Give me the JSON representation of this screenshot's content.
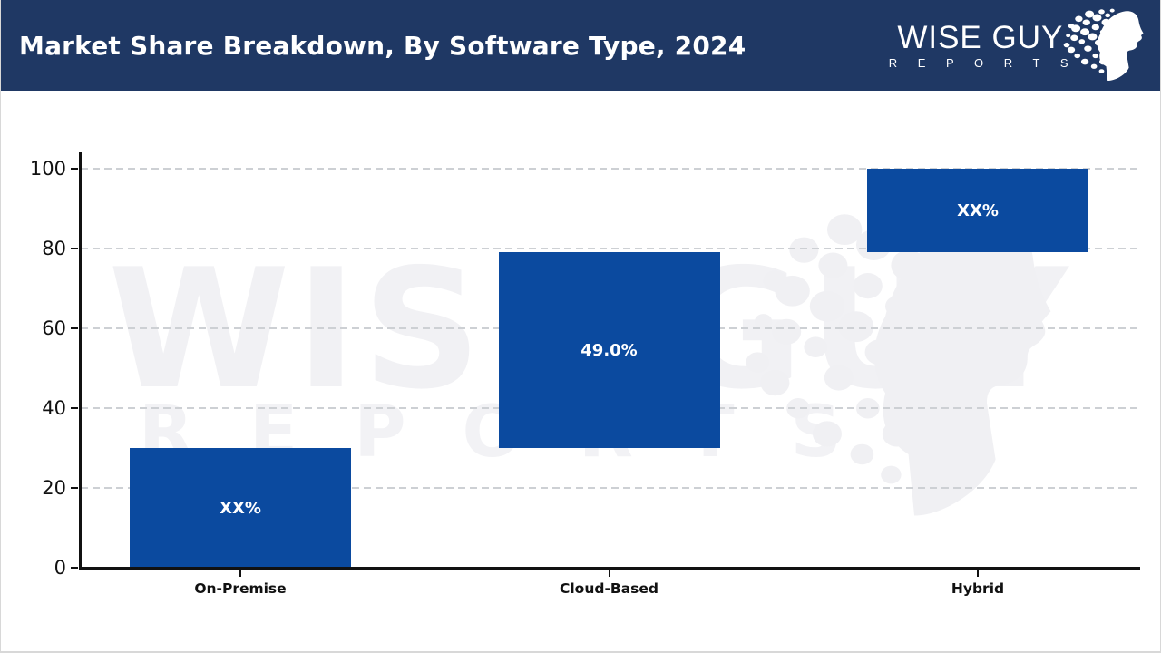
{
  "header": {
    "title": "Market Share Breakdown, By Software Type, 2024",
    "background_color": "#1f3864",
    "logo": {
      "line1": "WISE GUY",
      "line2": "R E P O R T S"
    }
  },
  "watermark": {
    "line1": "WISE GUY",
    "line2": "REPORTS"
  },
  "chart_data": {
    "type": "bar",
    "subtype": "floating-range-bars (waterfall-style market share)",
    "title": "Market Share Breakdown, By Software Type, 2024",
    "categories": [
      "On-Premise",
      "Cloud-Based",
      "Hybrid"
    ],
    "segments": [
      {
        "category": "On-Premise",
        "start": 0,
        "end": 30,
        "label": "XX%"
      },
      {
        "category": "Cloud-Based",
        "start": 30,
        "end": 79,
        "label": "49.0%"
      },
      {
        "category": "Hybrid",
        "start": 79,
        "end": 100,
        "label": "XX%"
      }
    ],
    "bar_color": "#0b4a9f",
    "label_color": "#ffffff",
    "xlabel": "",
    "ylabel": "",
    "ylim": [
      0,
      100
    ],
    "yticks": [
      0,
      20,
      40,
      60,
      80,
      100
    ],
    "grid": "horizontal dashed",
    "legend": "none"
  }
}
